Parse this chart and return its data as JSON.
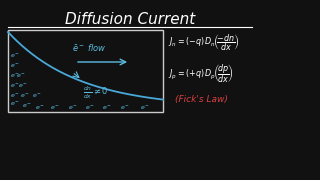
{
  "bg_color": "#111111",
  "title": "Diffusion Current",
  "title_color": "#ffffff",
  "title_fontsize": 11,
  "box_color": "#cccccc",
  "curve_color": "#4aa8d8",
  "electrons_color": "#5bbde0",
  "arrow_color": "#5bbde0",
  "eq_color": "#ffffff",
  "ficks_color": "#d94040",
  "ficks": "(Fick's Law)"
}
